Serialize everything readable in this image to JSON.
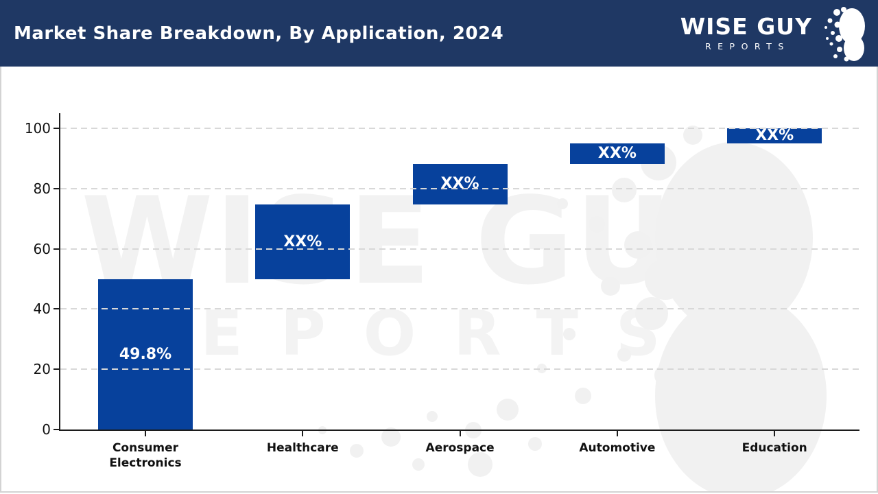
{
  "header": {
    "title": "Market Share Breakdown, By Application, 2024",
    "logo": {
      "wordmark": "WISE GUY",
      "reports": "REPORTS"
    }
  },
  "watermark": {
    "wordmark": "WISE GUY",
    "reports": "REPORTS"
  },
  "colors": {
    "header_bg": "#1f3864",
    "bar": "#07419c",
    "bar_label": "#ffffff",
    "grid": "#d8d8d8",
    "axis": "#1c1c1c",
    "watermark": "#f2f2f2"
  },
  "chart_data": {
    "type": "bar",
    "subtype": "waterfall",
    "title": "Market Share Breakdown, By Application, 2024",
    "xlabel": "",
    "ylabel": "",
    "categories": [
      "Consumer Electronics",
      "Healthcare",
      "Aerospace",
      "Automotive",
      "Education"
    ],
    "segments": [
      {
        "category": "Consumer Electronics",
        "start": 0,
        "end": 49.8,
        "label": "49.8%"
      },
      {
        "category": "Healthcare",
        "start": 49.8,
        "end": 74.7,
        "label": "XX%"
      },
      {
        "category": "Aerospace",
        "start": 74.7,
        "end": 88.2,
        "label": "XX%"
      },
      {
        "category": "Automotive",
        "start": 88.2,
        "end": 94.9,
        "label": "XX%"
      },
      {
        "category": "Education",
        "start": 94.9,
        "end": 100,
        "label": "XX%"
      }
    ],
    "yticks": [
      0,
      20,
      40,
      60,
      80,
      100
    ],
    "ylim": [
      0,
      105
    ],
    "grid": "horizontal-dashed-over-bars",
    "legend": "none",
    "bar_color": "#07419c",
    "label_color": "#ffffff"
  }
}
